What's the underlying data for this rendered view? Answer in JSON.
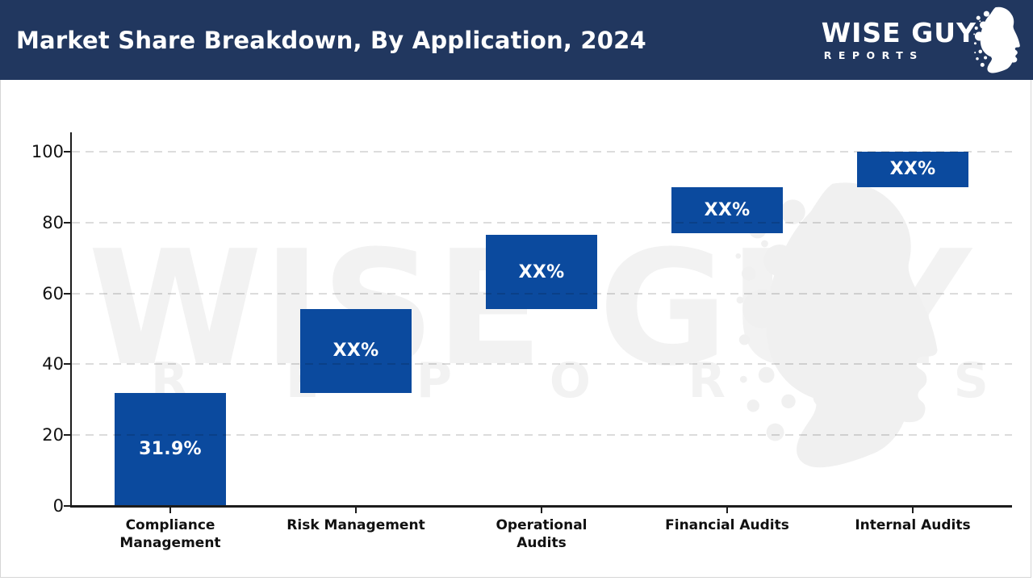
{
  "header": {
    "title": "Market Share Breakdown, By Application, 2024",
    "logo": {
      "name": "WISE GUY",
      "tagline": "REPORTS"
    }
  },
  "watermark": {
    "wordmark": "WISE GUY",
    "tagline": "R E P O R T S"
  },
  "colors": {
    "header_bg": "#21375f",
    "header_text": "#ffffff",
    "bar_fill": "#0b4a9e",
    "bar_label": "#ffffff",
    "axis": "#1c1c1c",
    "tick_label": "#111111",
    "gridline": "#dcdcdc",
    "watermark": "#f2f2f2",
    "card_border": "#d6d6d6"
  },
  "chart_data": {
    "type": "bar",
    "subtype": "waterfall",
    "title": "Market Share Breakdown, By Application, 2024",
    "categories": [
      "Compliance Management",
      "Risk Management",
      "Operational Audits",
      "Financial Audits",
      "Internal Audits"
    ],
    "segments": [
      {
        "category": "Compliance Management",
        "start": 0,
        "end": 31.9,
        "label": "31.9%"
      },
      {
        "category": "Risk Management",
        "start": 32,
        "end": 55.5,
        "label": "XX%"
      },
      {
        "category": "Operational Audits",
        "start": 55.5,
        "end": 76.5,
        "label": "XX%"
      },
      {
        "category": "Financial Audits",
        "start": 77,
        "end": 90,
        "label": "XX%"
      },
      {
        "category": "Internal Audits",
        "start": 90,
        "end": 100,
        "label": "XX%"
      }
    ],
    "yticks": [
      0,
      20,
      40,
      60,
      80,
      100
    ],
    "ylim": [
      0,
      105.7
    ],
    "xlabel": "",
    "ylabel": "",
    "grid": {
      "axis": "y",
      "style": "dashed"
    },
    "legend": null
  }
}
